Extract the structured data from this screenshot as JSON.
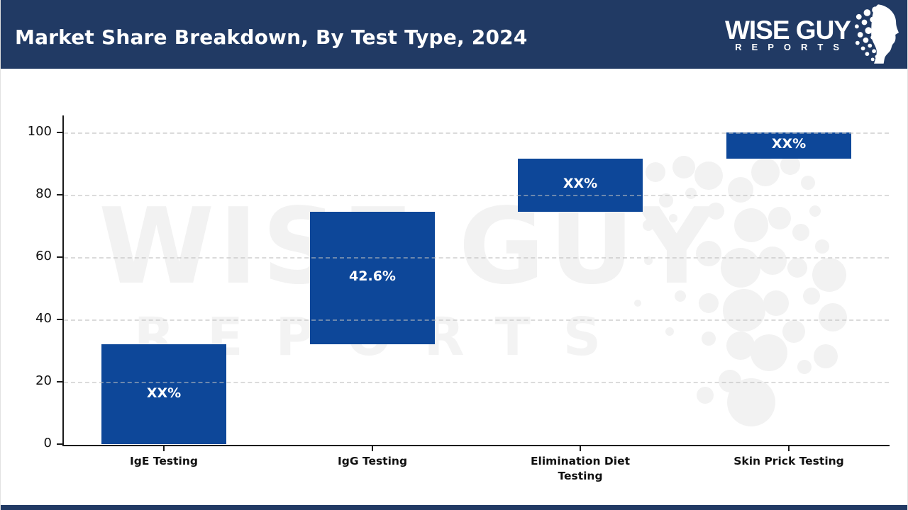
{
  "header": {
    "title": "Market Share Breakdown, By Test Type, 2024",
    "logo": {
      "name": "WISE GUY",
      "sub": "REPORTS"
    }
  },
  "watermark": {
    "line1": "WISE GUY",
    "line2": "REPORTS"
  },
  "chart_data": {
    "type": "bar",
    "subtype": "waterfall",
    "title": "Market Share Breakdown, By Test Type, 2024",
    "categories": [
      "IgE Testing",
      "IgG Testing",
      "Elimination Diet Testing",
      "Skin Prick Testing"
    ],
    "bars": [
      {
        "category": "IgE Testing",
        "start": 0,
        "end": 32,
        "value": 32,
        "label": "XX%"
      },
      {
        "category": "IgG Testing",
        "start": 32,
        "end": 74.6,
        "value": 42.6,
        "label": "42.6%"
      },
      {
        "category": "Elimination Diet Testing",
        "start": 74.6,
        "end": 91.6,
        "value": 17,
        "label": "XX%"
      },
      {
        "category": "Skin Prick Testing",
        "start": 91.6,
        "end": 100,
        "value": 8.4,
        "label": "XX%"
      }
    ],
    "xlabel": "",
    "ylabel": "",
    "ylim": [
      0,
      100
    ],
    "yticks": [
      0,
      20,
      40,
      60,
      80,
      100
    ],
    "grid": "horizontal-dashed",
    "legend": null,
    "bar_color": "#0D4799",
    "value_label_color": "#FFFFFF"
  },
  "colors": {
    "header_bg": "#213A64",
    "footer_bg": "#213A64",
    "bar": "#0D4799",
    "grid": "#DCDCDC",
    "axis": "#1A1A1A",
    "watermark": "#F2F2F2",
    "title_text": "#FFFFFF"
  }
}
